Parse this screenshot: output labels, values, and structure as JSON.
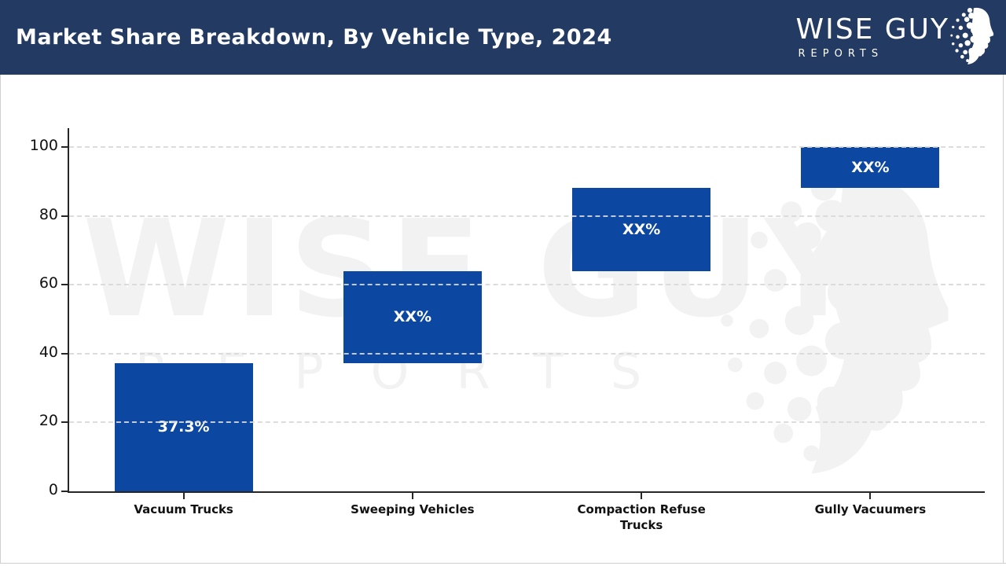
{
  "theme": {
    "header_bg": "#233A63",
    "logo_color": "#FFFFFF",
    "bar_color": "#0C47A1",
    "bar_label_color": "#FFFFFF",
    "grid_color": "#D9D9D9",
    "axis_color": "#262626",
    "watermark_color": "#F2F2F2",
    "text_color": "#111111"
  },
  "header": {
    "title": "Market Share Breakdown, By Vehicle Type, 2024",
    "logo": {
      "line1": "WISE GUY",
      "line2": "REPORTS"
    }
  },
  "watermark": {
    "line1": "WISE GUY",
    "line2": "REPORTS"
  },
  "chart_data": {
    "type": "bar",
    "subtype": "waterfall",
    "title": "Market Share Breakdown, By Vehicle Type, 2024",
    "categories": [
      "Vacuum Trucks",
      "Sweeping Vehicles",
      "Compaction Refuse Trucks",
      "Gully Vacuumers"
    ],
    "segments": [
      {
        "category": "Vacuum Trucks",
        "start": 0,
        "end": 37.3,
        "label": "37.3%"
      },
      {
        "category": "Sweeping Vehicles",
        "start": 37.3,
        "end": 63.9,
        "label": "XX%"
      },
      {
        "category": "Compaction Refuse Trucks",
        "start": 63.9,
        "end": 88.1,
        "label": "XX%"
      },
      {
        "category": "Gully Vacuumers",
        "start": 88.1,
        "end": 100.0,
        "label": "XX%"
      }
    ],
    "xlabel": "",
    "ylabel": "",
    "yticks": [
      0,
      20,
      40,
      60,
      80,
      100
    ],
    "ylim": [
      0,
      105
    ],
    "grid": "horizontal-dashed",
    "legend": "none"
  }
}
